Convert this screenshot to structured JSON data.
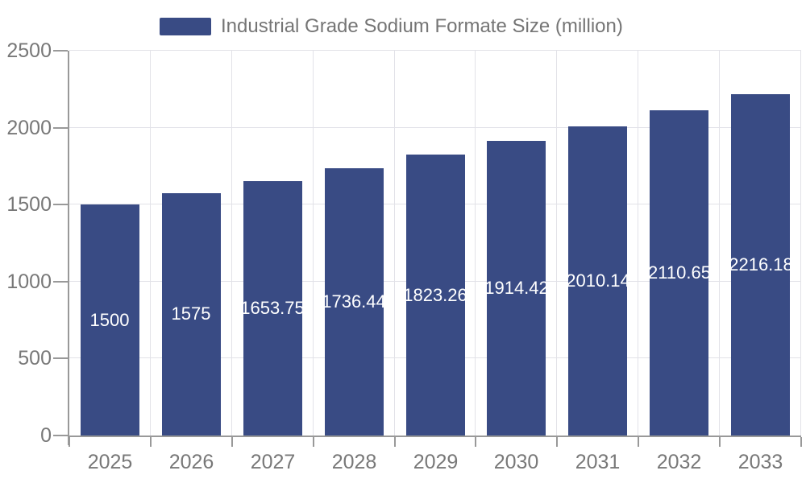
{
  "legend": {
    "label": "Industrial Grade Sodium Formate Size (million)"
  },
  "chart_data": {
    "type": "bar",
    "title": "",
    "legend": "Industrial Grade Sodium Formate Size (million)",
    "legend_position": "top",
    "categories": [
      "2025",
      "2026",
      "2027",
      "2028",
      "2029",
      "2030",
      "2031",
      "2032",
      "2033"
    ],
    "values": [
      1500,
      1575,
      1653.75,
      1736.44,
      1823.26,
      1914.42,
      2010.14,
      2110.65,
      2216.18
    ],
    "value_labels": [
      "1500",
      "1575",
      "1653.75",
      "1736.44",
      "1823.26",
      "1914.42",
      "2010.14",
      "2110.65",
      "2216.18"
    ],
    "xlabel": "",
    "ylabel": "",
    "ylim": [
      0,
      2500
    ],
    "yticks": [
      0,
      500,
      1000,
      1500,
      2000,
      2500
    ],
    "grid": true,
    "colors": {
      "bar": "#394B84",
      "value_label": "#FFFFFF",
      "axis_line": "#999999",
      "axis_text": "#787878",
      "gridline": "#E2E2E8",
      "legend_text": "#757575",
      "background": "#FFFFFF"
    }
  }
}
